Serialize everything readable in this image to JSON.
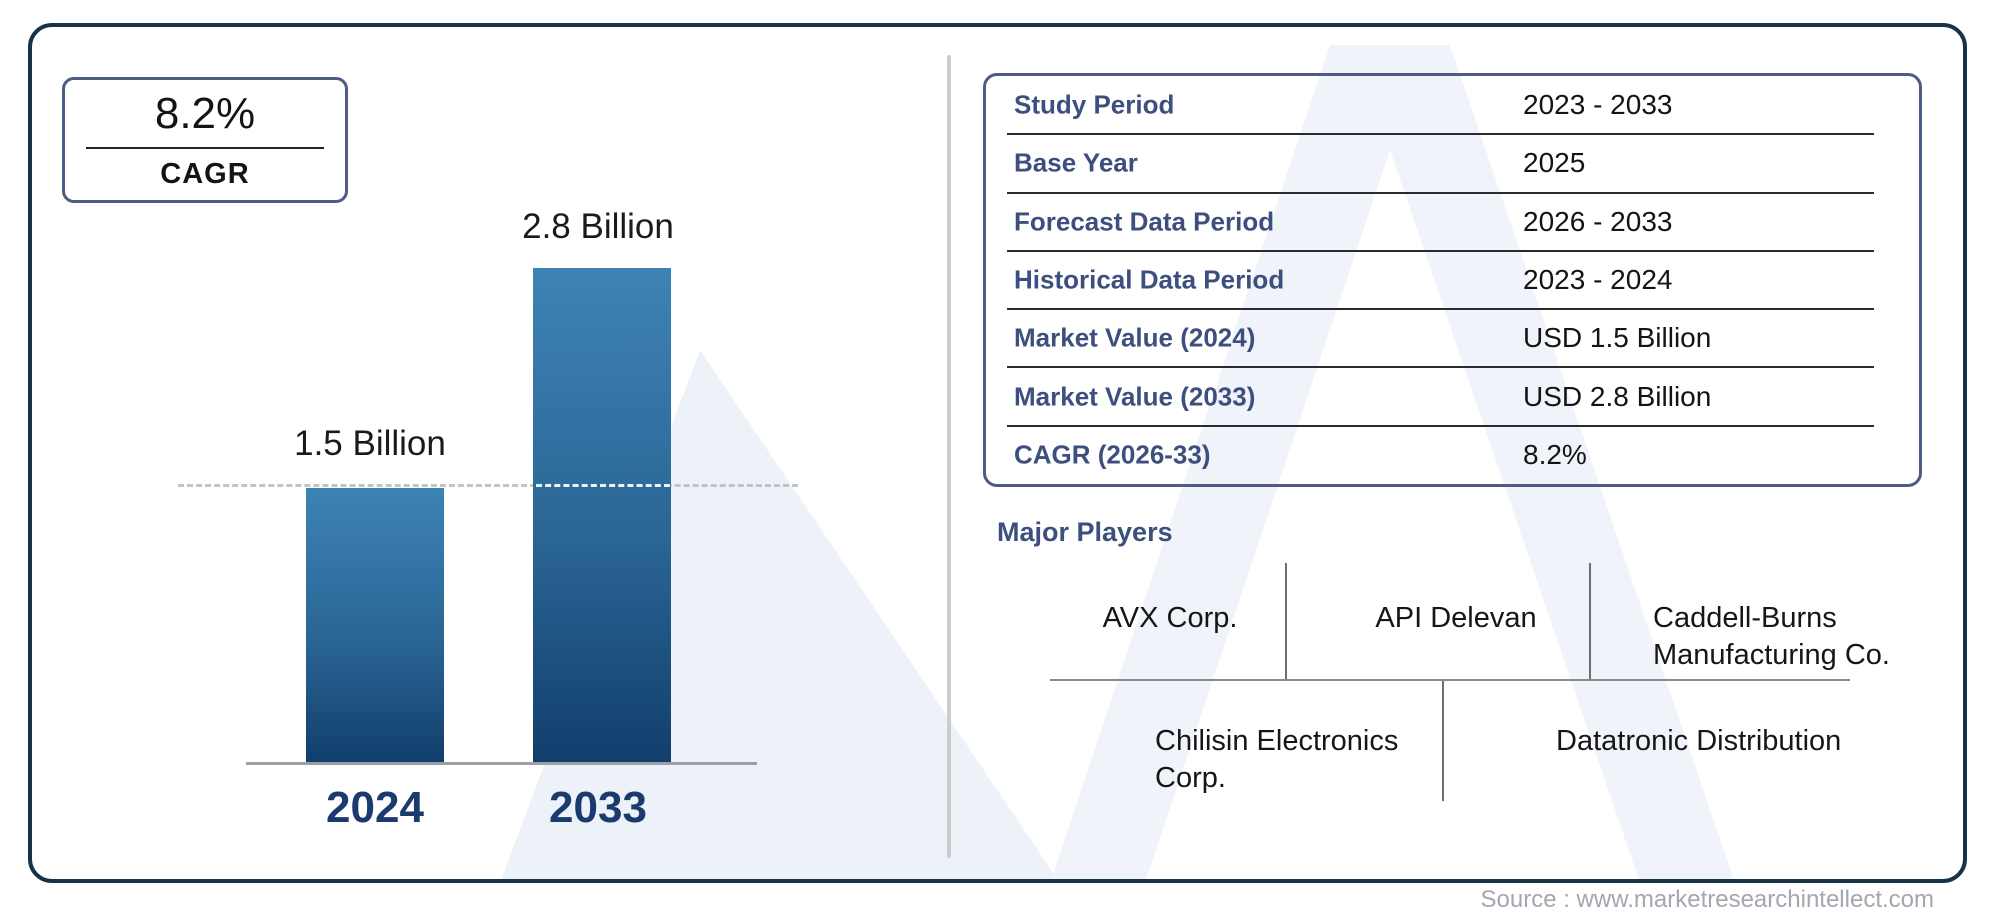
{
  "cagr_box": {
    "value": "8.2%",
    "label": "CAGR"
  },
  "chart_data": {
    "type": "bar",
    "categories": [
      "2024",
      "2033"
    ],
    "values": [
      1.5,
      2.8
    ],
    "value_labels": [
      "1.5 Billion",
      "2.8 Billion"
    ],
    "unit": "USD Billion",
    "title": "",
    "xlabel": "",
    "ylabel": "",
    "ylim": [
      0,
      3
    ],
    "reference_line": {
      "y": 1.5,
      "style": "dashed"
    },
    "legend": "none",
    "bar_gradient": [
      "#3d83b5",
      "#113e6c"
    ]
  },
  "info_table": {
    "rows": [
      {
        "label": "Study Period",
        "value": "2023 - 2033"
      },
      {
        "label": "Base Year",
        "value": "2025"
      },
      {
        "label": "Forecast Data Period",
        "value": "2026 - 2033"
      },
      {
        "label": "Historical Data Period",
        "value": "2023 - 2024"
      },
      {
        "label": "Market Value (2024)",
        "value": "USD 1.5 Billion"
      },
      {
        "label": "Market Value (2033)",
        "value": "USD 2.8 Billion"
      },
      {
        "label": "CAGR (2026-33)",
        "value": "8.2%"
      }
    ]
  },
  "major_players": {
    "heading": "Major Players",
    "row1": [
      "AVX Corp.",
      "API Delevan",
      "Caddell-Burns Manufacturing Co."
    ],
    "row2": [
      "Chilisin Electronics Corp.",
      "Datatronic Distribution"
    ]
  },
  "source_text": "Source : www.marketresearchintellect.com",
  "colors": {
    "card_border": "#16334a",
    "box_border": "#4d5b85",
    "heading_blue": "#3d4f7e",
    "year_label_blue": "#1b3a6e",
    "bar_top": "#3d83b5",
    "bar_bottom": "#113e6c",
    "source_gray": "#a2a8af",
    "watermark": "#edf2f8"
  }
}
